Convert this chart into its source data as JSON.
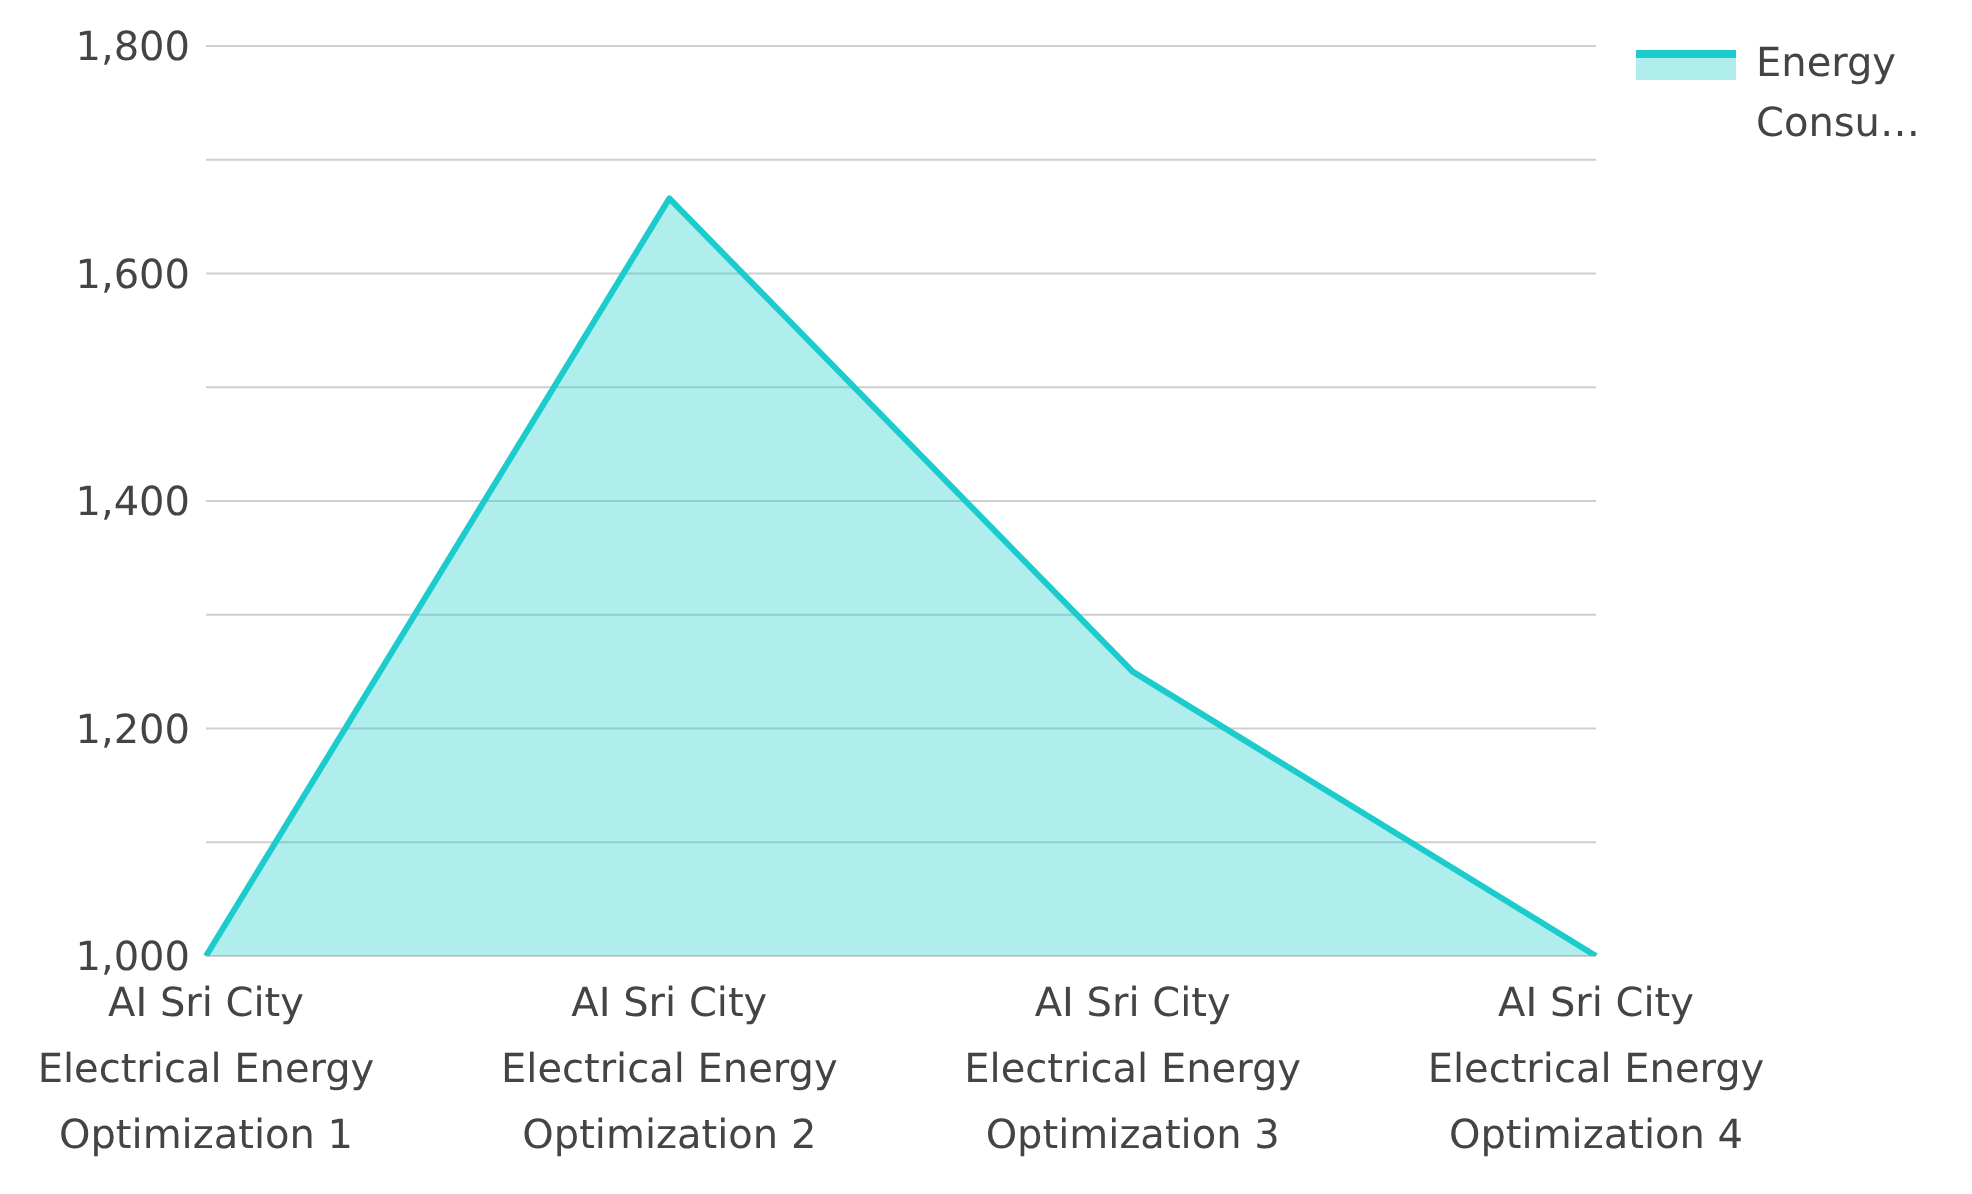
{
  "chart_data": {
    "type": "area",
    "categories": [
      "AI Sri City Electrical Energy Optimization 1",
      "AI Sri City Electrical Energy Optimization 2",
      "AI Sri City Electrical Energy Optimization 3",
      "AI Sri City Electrical Energy Optimization 4"
    ],
    "series": [
      {
        "name": "Energy Consu…",
        "color": "#1ccccc",
        "values": [
          1000,
          1666,
          1250,
          1000
        ]
      }
    ],
    "ylim": [
      1000,
      1800
    ],
    "yticks": [
      {
        "value": 1000,
        "label": "1,000"
      },
      {
        "value": 1100,
        "label": null
      },
      {
        "value": 1200,
        "label": "1,200"
      },
      {
        "value": 1300,
        "label": null
      },
      {
        "value": 1400,
        "label": "1,400"
      },
      {
        "value": 1500,
        "label": null
      },
      {
        "value": 1600,
        "label": "1,600"
      },
      {
        "value": 1700,
        "label": null
      },
      {
        "value": 1800,
        "label": "1,800"
      }
    ],
    "grid": "y",
    "legend": "top right",
    "marker": "none",
    "line_style": "solid"
  }
}
